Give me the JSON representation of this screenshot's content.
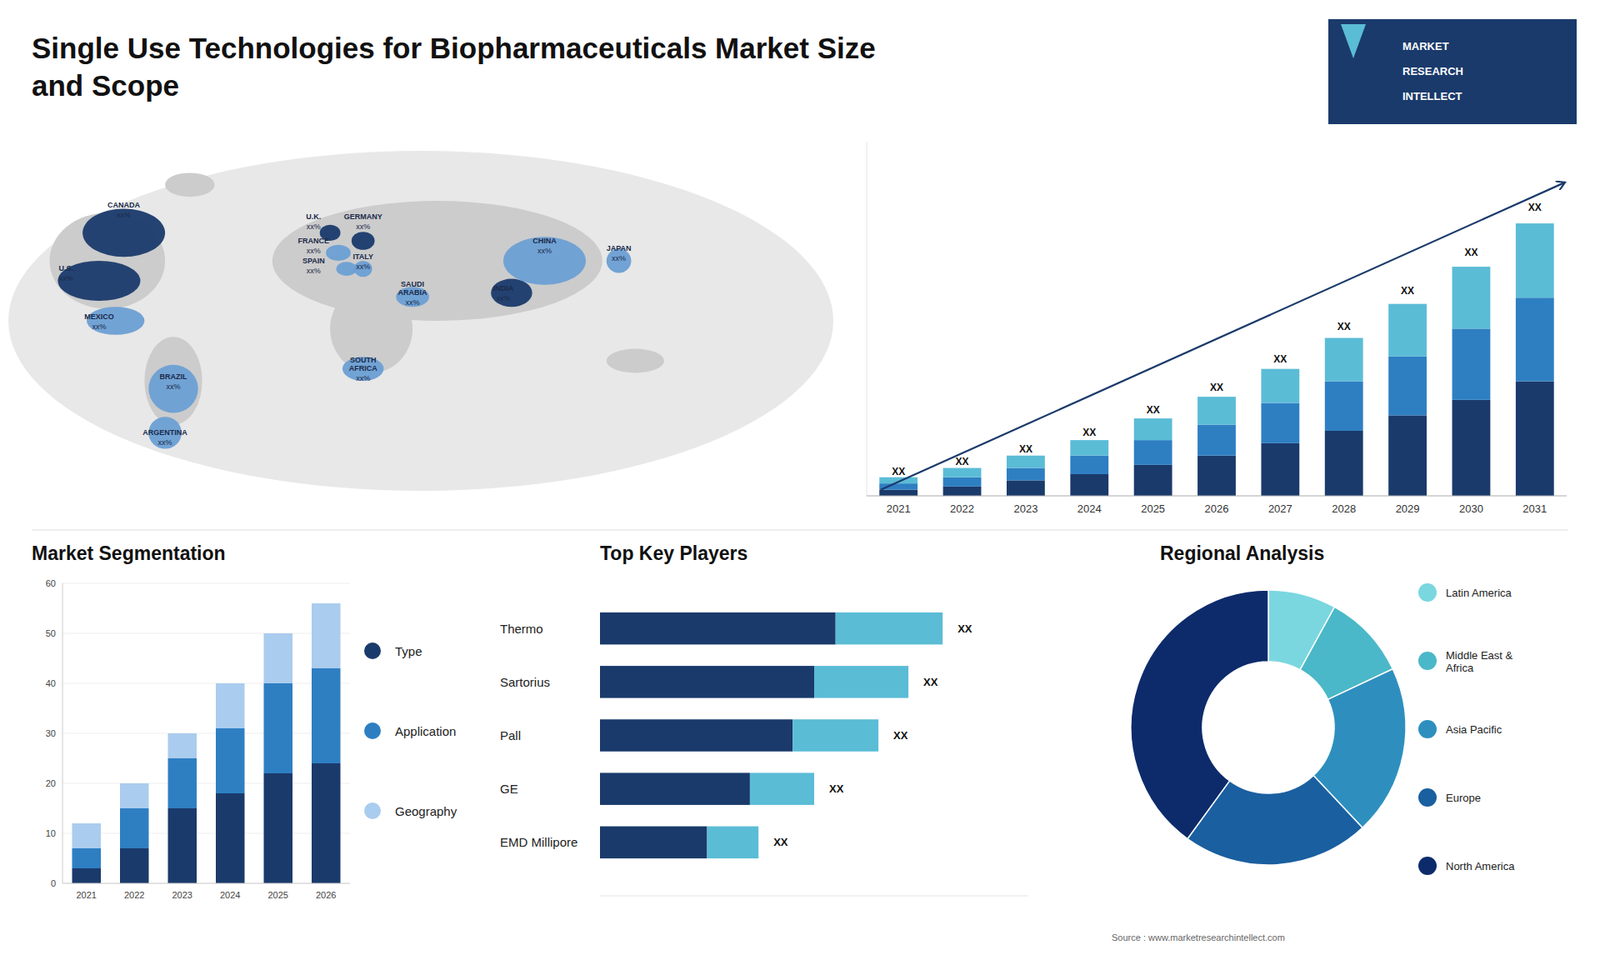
{
  "chart_data": [
    {
      "type": "bar",
      "stacked": true,
      "title": "Single Use Technologies for Biopharmaceuticals Market Size\nand Scope",
      "subtitle": "MARKET\nRESEARCH\nINTELLECT",
      "categories": [
        "2021",
        "2022",
        "2023",
        "2024",
        "2025",
        "2026",
        "2027",
        "2028",
        "2029",
        "2030",
        "2031"
      ],
      "series": [
        {
          "color": "#1a3a6b",
          "values": [
            2,
            3,
            5,
            7,
            10,
            13,
            17,
            21,
            26,
            31,
            37
          ]
        },
        {
          "color": "#2e7fc2",
          "values": [
            2,
            3,
            4,
            6,
            8,
            10,
            13,
            16,
            19,
            23,
            27
          ]
        },
        {
          "color": "#5bbcd6",
          "values": [
            2,
            3,
            4,
            5,
            7,
            9,
            11,
            14,
            17,
            20,
            24
          ]
        }
      ],
      "ylim": [
        0,
        114.4
      ],
      "tick_labels": "x",
      "annotations": [
        "XX",
        "XX",
        "XX",
        "XX",
        "XX",
        "XX",
        "XX",
        "XX",
        "XX",
        "XX",
        "XX"
      ]
    },
    {
      "type": "map",
      "categories": [
        "CANADA",
        "U.S.",
        "MEXICO",
        "BRAZIL",
        "ARGENTINA",
        "U.K.",
        "FRANCE",
        "SPAIN",
        "GERMANY",
        "ITALY",
        "SAUDI\nARABIA",
        "SOUTH\nAFRICA",
        "CHINA",
        "JAPAN",
        "INDIA"
      ],
      "colors": [
        "#1a3a6b",
        "#1a3a6b",
        "#6b9fd4",
        "#6b9fd4",
        "#6b9fd4",
        "#1a3a6b",
        "#6b9fd4",
        "#6b9fd4",
        "#1a3a6b",
        "#6b9fd4",
        "#6b9fd4",
        "#6b9fd4",
        "#6b9fd4",
        "#6b9fd4",
        "#1a3a6b"
      ],
      "annotations": [
        "xx%",
        "xx%",
        "xx%",
        "xx%",
        "xx%",
        "xx%",
        "xx%",
        "xx%",
        "xx%",
        "xx%",
        "xx%",
        "xx%",
        "xx%",
        "xx%",
        "xx%"
      ]
    },
    {
      "type": "bar",
      "stacked": true,
      "title": "Market Segmentation",
      "categories": [
        "2021",
        "2022",
        "2023",
        "2024",
        "2025",
        "2026"
      ],
      "series": [
        {
          "name": "Type",
          "color": "#1a3a6b",
          "values": [
            3,
            7,
            15,
            18,
            22,
            24
          ]
        },
        {
          "name": "Application",
          "color": "#2e7fc2",
          "values": [
            4,
            8,
            10,
            13,
            18,
            19
          ]
        },
        {
          "name": "Geography",
          "color": "#aaccee",
          "values": [
            5,
            5,
            5,
            9,
            10,
            13
          ]
        }
      ],
      "ylim": [
        0,
        60
      ],
      "yticks": [
        0,
        10,
        20,
        30,
        40,
        50,
        60
      ],
      "grid": true,
      "legend": "right"
    },
    {
      "type": "bar",
      "orientation": "horizontal",
      "stacked": true,
      "title": "Top Key Players",
      "categories": [
        "Thermo",
        "Sartorius",
        "Pall",
        "GE",
        "EMD Millipore"
      ],
      "series": [
        {
          "color": "#1a3a6b",
          "values": [
            0.55,
            0.5,
            0.45,
            0.35,
            0.25
          ]
        },
        {
          "color": "#5bbcd6",
          "values": [
            0.25,
            0.22,
            0.2,
            0.15,
            0.12
          ]
        }
      ],
      "xlim": [
        0,
        1
      ],
      "tick_labels": false,
      "annotations": [
        "XX",
        "XX",
        "XX",
        "XX",
        "XX"
      ]
    },
    {
      "type": "donut",
      "title": "Regional Analysis",
      "categories": [
        "Latin America",
        "Middle East &\nAfrica",
        "Asia Pacific",
        "Europe",
        "North America"
      ],
      "values": [
        8,
        10,
        20,
        22,
        40
      ],
      "colors": [
        "#7ad7e0",
        "#4ab8c8",
        "#2e8fbf",
        "#1a5fa0",
        "#0d2b6b"
      ],
      "legend": "right",
      "annotations": [
        "Source : www.marketresearchintellect.com"
      ]
    }
  ]
}
